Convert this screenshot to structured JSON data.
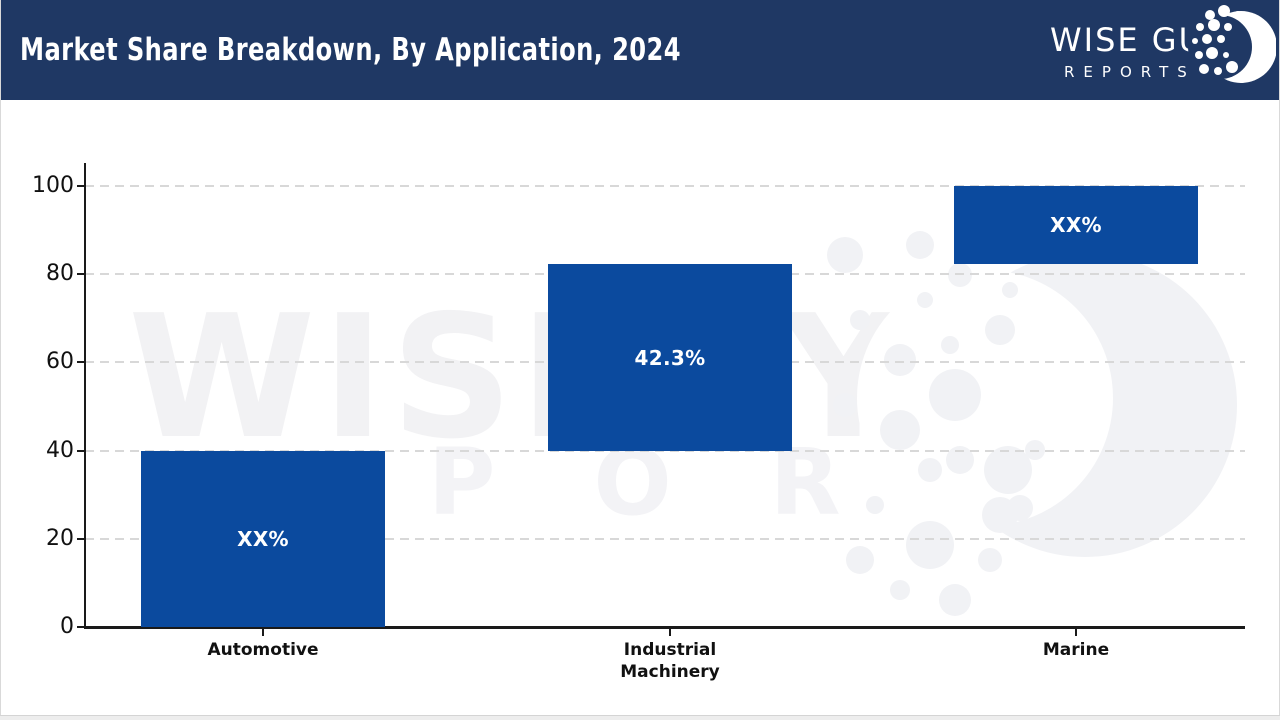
{
  "header": {
    "title": "Market Share Breakdown, By Application, 2024",
    "logo": {
      "brand_line1": "WISE GUY",
      "brand_line2": "REPORTS"
    }
  },
  "watermark": {
    "text_line1": "WISE",
    "text_line1b": "Y",
    "text_line2": "P O R T S"
  },
  "colors": {
    "header_bg": "#1f3864",
    "bar_fill": "#0b4a9e",
    "bar_label": "#ffffff",
    "grid": "#d8d8d8",
    "axis": "#1a1a1a",
    "watermark": "#f1f2f5",
    "background": "#ffffff"
  },
  "chart_data": {
    "type": "bar",
    "subtype": "waterfall (stacked percentage breakdown)",
    "title": "Market Share Breakdown, By Application, 2024",
    "xlabel": "",
    "ylabel": "",
    "ylim": [
      0,
      100
    ],
    "yticks": [
      0,
      20,
      40,
      60,
      80,
      100
    ],
    "grid": {
      "horizontal": true,
      "style": "dashed"
    },
    "legend": "none",
    "categories": [
      {
        "name": "Automotive",
        "label_lines": [
          "Automotive"
        ]
      },
      {
        "name": "Industrial Machinery",
        "label_lines": [
          "Industrial",
          "Machinery"
        ]
      },
      {
        "name": "Marine",
        "label_lines": [
          "Marine"
        ]
      }
    ],
    "segments": [
      {
        "category": "Automotive",
        "value_label": "XX%",
        "start": 0,
        "end": 40,
        "height_pct": 40
      },
      {
        "category": "Industrial Machinery",
        "value_label": "42.3%",
        "start": 40,
        "end": 82.3,
        "height_pct": 42.3
      },
      {
        "category": "Marine",
        "value_label": "XX%",
        "start": 82.3,
        "end": 100,
        "height_pct": 17.7
      }
    ]
  }
}
